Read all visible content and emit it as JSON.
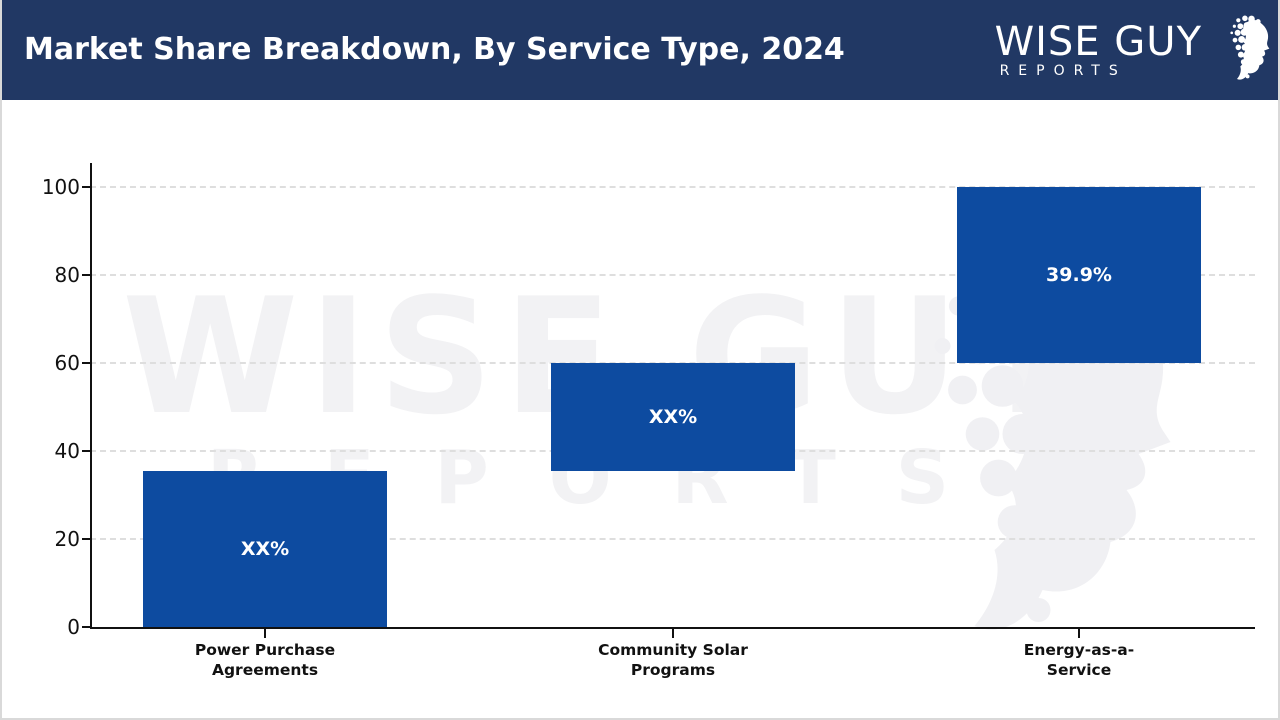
{
  "header": {
    "title": "Market Share Breakdown, By Service Type, 2024",
    "logo": {
      "brand_top": "WISE GUY",
      "brand_bottom": "REPORTS"
    }
  },
  "watermark": {
    "line1": "WISE GUY",
    "line2": "REPORTS"
  },
  "colors": {
    "header_bg": "#213864",
    "bar": "#0D4BA0",
    "grid": "#DEDEDE",
    "axis": "#111111",
    "watermark": "#F2F2F4"
  },
  "chart_data": {
    "type": "bar",
    "subtype": "waterfall",
    "title": "Market Share Breakdown, By Service Type, 2024",
    "xlabel": "",
    "ylabel": "",
    "ylim": [
      0,
      105
    ],
    "yticks": [
      0,
      20,
      40,
      60,
      80,
      100
    ],
    "grid": "horizontal-dashed",
    "legend": false,
    "bar_color": "#0D4BA0",
    "categories": [
      "Power Purchase Agreements",
      "Community Solar Programs",
      "Energy-as-a-Service"
    ],
    "category_label_lines": [
      [
        "Power Purchase",
        "Agreements"
      ],
      [
        "Community Solar",
        "Programs"
      ],
      [
        "Energy-as-a-",
        "Service"
      ]
    ],
    "segments": [
      {
        "category": "Power Purchase Agreements",
        "start": 0,
        "end": 35.4,
        "value_label": "XX%"
      },
      {
        "category": "Community Solar Programs",
        "start": 35.4,
        "end": 60.1,
        "value_label": "XX%"
      },
      {
        "category": "Energy-as-a-Service",
        "start": 60.1,
        "end": 100,
        "value_label": "39.9%"
      }
    ]
  }
}
